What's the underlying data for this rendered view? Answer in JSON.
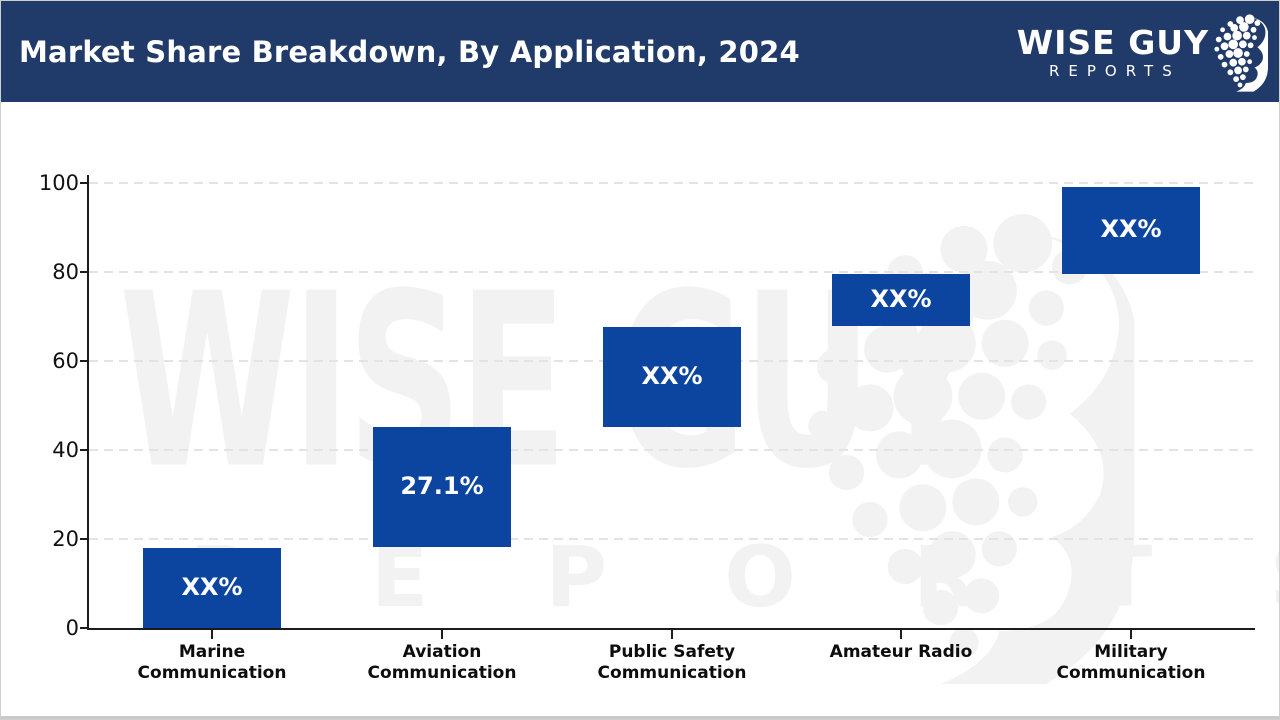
{
  "header": {
    "title": "Market Share Breakdown, By Application, 2024",
    "logo": {
      "line1": "WISE GUY",
      "line2": "REPORTS"
    }
  },
  "watermark": {
    "line1": "WISE GUY",
    "line2": "R E P O R T S"
  },
  "colors": {
    "header_bg": "#203a69",
    "bar": "#0b45a0",
    "axis": "#1c1c1c",
    "gridline": "#e3e3e3",
    "watermark": "#f2f2f2",
    "label_on_bar": "#ffffff"
  },
  "chart_data": {
    "type": "bar",
    "subtype": "waterfall-floating-bars",
    "title": "Market Share Breakdown, By Application, 2024",
    "xlabel": "",
    "ylabel": "",
    "ylim": [
      0,
      100
    ],
    "y_ticks": [
      0,
      20,
      40,
      60,
      80,
      100
    ],
    "grid": "horizontal-dashed",
    "legend": "none",
    "categories": [
      "Marine\nCommunication",
      "Aviation\nCommunication",
      "Public Safety\nCommunication",
      "Amateur Radio",
      "Military\nCommunication"
    ],
    "segments": [
      {
        "category": "Marine Communication",
        "start": 0,
        "end": 18.0,
        "label": "XX%"
      },
      {
        "category": "Aviation Communication",
        "start": 18.1,
        "end": 45.2,
        "label": "27.1%",
        "value": 27.1
      },
      {
        "category": "Public Safety Communication",
        "start": 45.2,
        "end": 67.6,
        "label": "XX%"
      },
      {
        "category": "Amateur Radio",
        "start": 67.9,
        "end": 79.6,
        "label": "XX%"
      },
      {
        "category": "Military Communication",
        "start": 79.6,
        "end": 99.2,
        "label": "XX%"
      }
    ]
  }
}
